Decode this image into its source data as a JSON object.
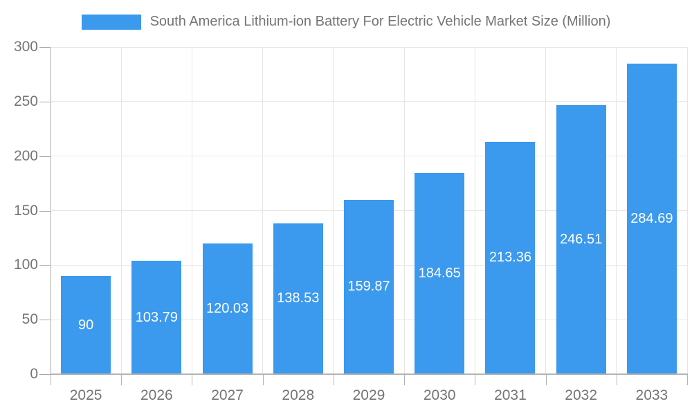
{
  "legend": {
    "label": "South America Lithium-ion Battery For Electric Vehicle Market Size (Million)"
  },
  "colors": {
    "bar": "#3b99ee",
    "axis_line": "#a6a6a6",
    "gridline": "#e6e6e6",
    "axis_text": "#757575",
    "value_label_text": "#ffffff",
    "background": "#ffffff"
  },
  "chart_data": {
    "type": "bar",
    "title": "South America Lithium-ion Battery For Electric Vehicle Market Size (Million)",
    "categories": [
      "2025",
      "2026",
      "2027",
      "2028",
      "2029",
      "2030",
      "2031",
      "2032",
      "2033"
    ],
    "values": [
      90,
      103.79,
      120.03,
      138.53,
      159.87,
      184.65,
      213.36,
      246.51,
      284.69
    ],
    "value_labels": [
      "90",
      "103.79",
      "120.03",
      "138.53",
      "159.87",
      "184.65",
      "213.36",
      "246.51",
      "284.69"
    ],
    "xlabel": "",
    "ylabel": "",
    "ylim": [
      0,
      300
    ],
    "yticks": [
      0,
      50,
      100,
      150,
      200,
      250,
      300
    ],
    "grid": true,
    "legend_position": "top",
    "value_label_position": "inside-center"
  }
}
